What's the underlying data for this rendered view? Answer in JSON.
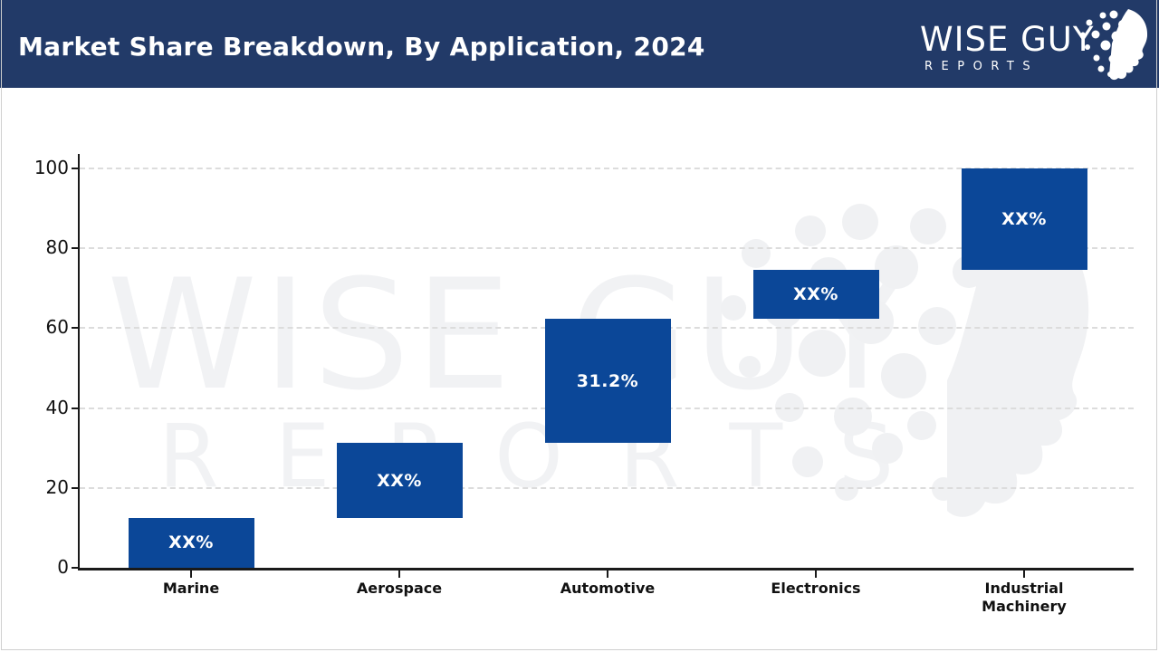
{
  "header": {
    "title": "Market Share Breakdown, By Application, 2024",
    "logo": {
      "line1": "WISE GUY",
      "line2": "REPORTS"
    }
  },
  "watermark": {
    "line1": "WISE GUY",
    "line2": "REPORTS"
  },
  "colors": {
    "header_bg": "#223a68",
    "bar": "#0b4798",
    "bar_label": "#ffffff",
    "axis": "#1a1a1a",
    "gridline": "#dcdcdc",
    "watermark": "#f1f2f4",
    "frame_border": "#cfcfcf"
  },
  "chart_data": {
    "type": "bar",
    "variant": "floating-waterfall",
    "title": "Market Share Breakdown, By Application, 2024",
    "categories": [
      "Marine",
      "Aerospace",
      "Automotive",
      "Electronics",
      "Industrial Machinery"
    ],
    "segments": [
      {
        "category": "Marine",
        "start": 0,
        "end": 12.5,
        "value_label": "XX%"
      },
      {
        "category": "Aerospace",
        "start": 12.5,
        "end": 31.2,
        "value_label": "XX%"
      },
      {
        "category": "Automotive",
        "start": 31.2,
        "end": 62.4,
        "value_label": "31.2%"
      },
      {
        "category": "Electronics",
        "start": 62.4,
        "end": 74.6,
        "value_label": "XX%"
      },
      {
        "category": "Industrial Machinery",
        "start": 74.6,
        "end": 100,
        "value_label": "XX%"
      }
    ],
    "xlabel": "",
    "ylabel": "",
    "yticks": [
      0,
      20,
      40,
      60,
      80,
      100
    ],
    "ylim": [
      0,
      105
    ],
    "grid": {
      "horizontal": true,
      "style": "dashed"
    },
    "legend": null,
    "bar_label_visible_only_for": "Automotive"
  }
}
